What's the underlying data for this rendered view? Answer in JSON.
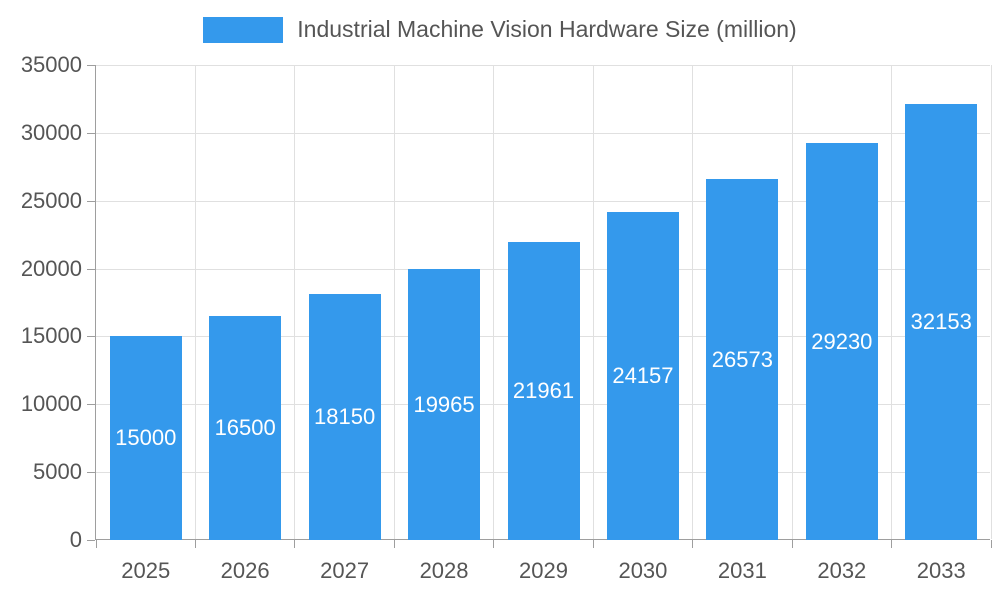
{
  "chart_data": {
    "type": "bar",
    "title": "Industrial Machine Vision Hardware Size (million)",
    "categories": [
      "2025",
      "2026",
      "2027",
      "2028",
      "2029",
      "2030",
      "2031",
      "2032",
      "2033"
    ],
    "values": [
      15000,
      16500,
      18150,
      19965,
      21961,
      24157,
      26573,
      29230,
      32153
    ],
    "xlabel": "",
    "ylabel": "",
    "ylim": [
      0,
      35000
    ],
    "ytick_step": 5000,
    "grid": true,
    "legend_position": "top",
    "colors": {
      "bar": "#3499EC",
      "bar_label": "#FFFFFF",
      "axis_text": "#555555",
      "grid": "#E0E0E0",
      "axis_line": "#9E9E9E",
      "background": "#FFFFFF"
    }
  }
}
